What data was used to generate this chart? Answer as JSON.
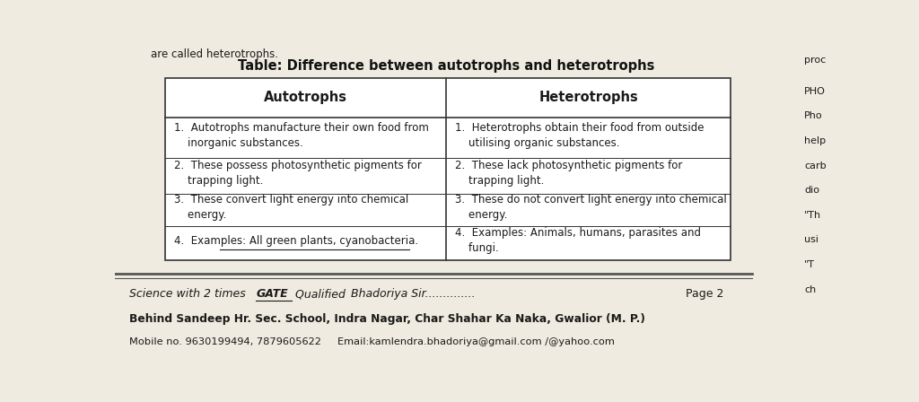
{
  "title": "Table: Difference between autotrophs and heterotrophs",
  "col1_header": "Autotrophs",
  "col2_header": "Heterotrophs",
  "col1_rows": [
    "1.  Autotrophs manufacture their own food from\n    inorganic substances.",
    "2.  These possess photosynthetic pigments for\n    trapping light.",
    "3.  These convert light energy into chemical\n    energy.",
    "4.  Examples: All green plants, cyanobacteria."
  ],
  "col2_rows": [
    "1.  Heterotrophs obtain their food from outside\n    utilising organic substances.",
    "2.  These lack photosynthetic pigments for\n    trapping light.",
    "3.  These do not convert light energy into chemical\n    energy.",
    "4.  Examples: Animals, humans, parasites and\n    fungi."
  ],
  "footer_line2": "Behind Sandeep Hr. Sec. School, Indra Nagar, Char Shahar Ka Naka, Gwalior (M. P.)",
  "footer_line3": "Mobile no. 9630199494, 7879605622     Email:kamlendra.bhadoriya@gmail.com /@yahoo.com",
  "footer_page": "Page 2",
  "bg_color": "#f0ebe0",
  "table_bg": "#ffffff",
  "text_color": "#1a1a1a",
  "title_color": "#111111",
  "border_color": "#333333",
  "footer_separator_color": "#555555",
  "right_margin_texts": [
    "proc",
    "PHO",
    "Pho",
    "help",
    "carb",
    "dio",
    "\"Th",
    "usi",
    "\"T",
    "ch"
  ]
}
